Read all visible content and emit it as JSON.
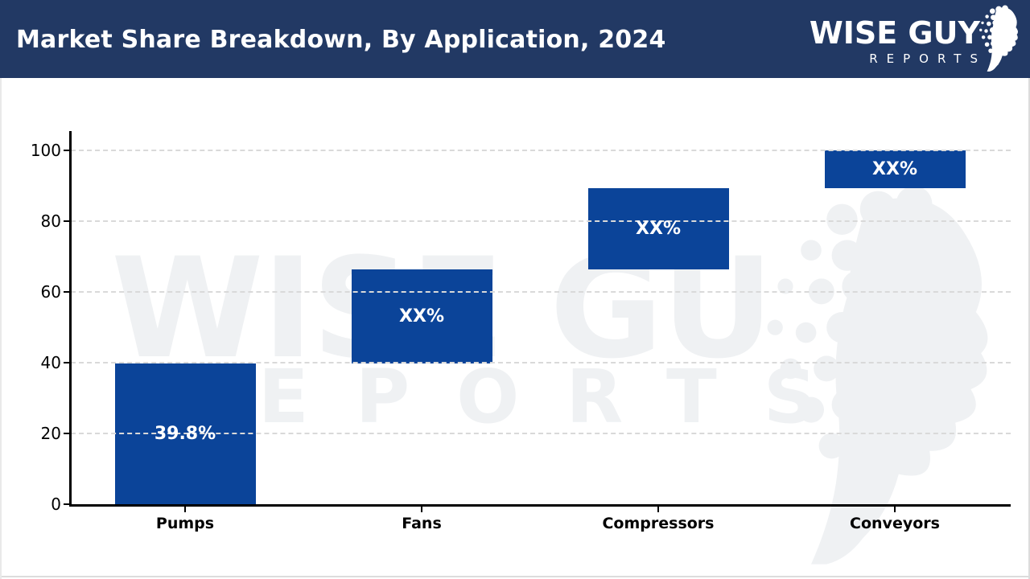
{
  "header": {
    "title": "Market Share Breakdown, By Application, 2024",
    "bg_color": "#223964",
    "logo": {
      "line1": "WISE GUY",
      "line2": "REPORTS"
    }
  },
  "watermark": {
    "line1": "WISE GU",
    "line2": "REPORTS"
  },
  "chart_data": {
    "type": "bar",
    "subtype": "waterfall",
    "title": "Market Share Breakdown, By Application, 2024",
    "categories": [
      "Pumps",
      "Fans",
      "Compressors",
      "Conveyors"
    ],
    "segments": [
      {
        "category": "Pumps",
        "start": 0,
        "end": 39.8,
        "label": "39.8%"
      },
      {
        "category": "Fans",
        "start": 39.8,
        "end": 66.3,
        "label": "XX%"
      },
      {
        "category": "Compressors",
        "start": 66.3,
        "end": 89.3,
        "label": "XX%"
      },
      {
        "category": "Conveyors",
        "start": 89.3,
        "end": 100,
        "label": "XX%"
      }
    ],
    "ylim": [
      0,
      100
    ],
    "yticks": [
      0,
      20,
      40,
      60,
      80,
      100
    ],
    "xlabel": "",
    "ylabel": "",
    "grid": "horizontal-dashed-over-bars",
    "legend": "none",
    "bar_color": "#0b4499",
    "bar_label_color": "#ffffff",
    "gridline_color": "#d9d9d9",
    "axis_color": "#000000"
  }
}
